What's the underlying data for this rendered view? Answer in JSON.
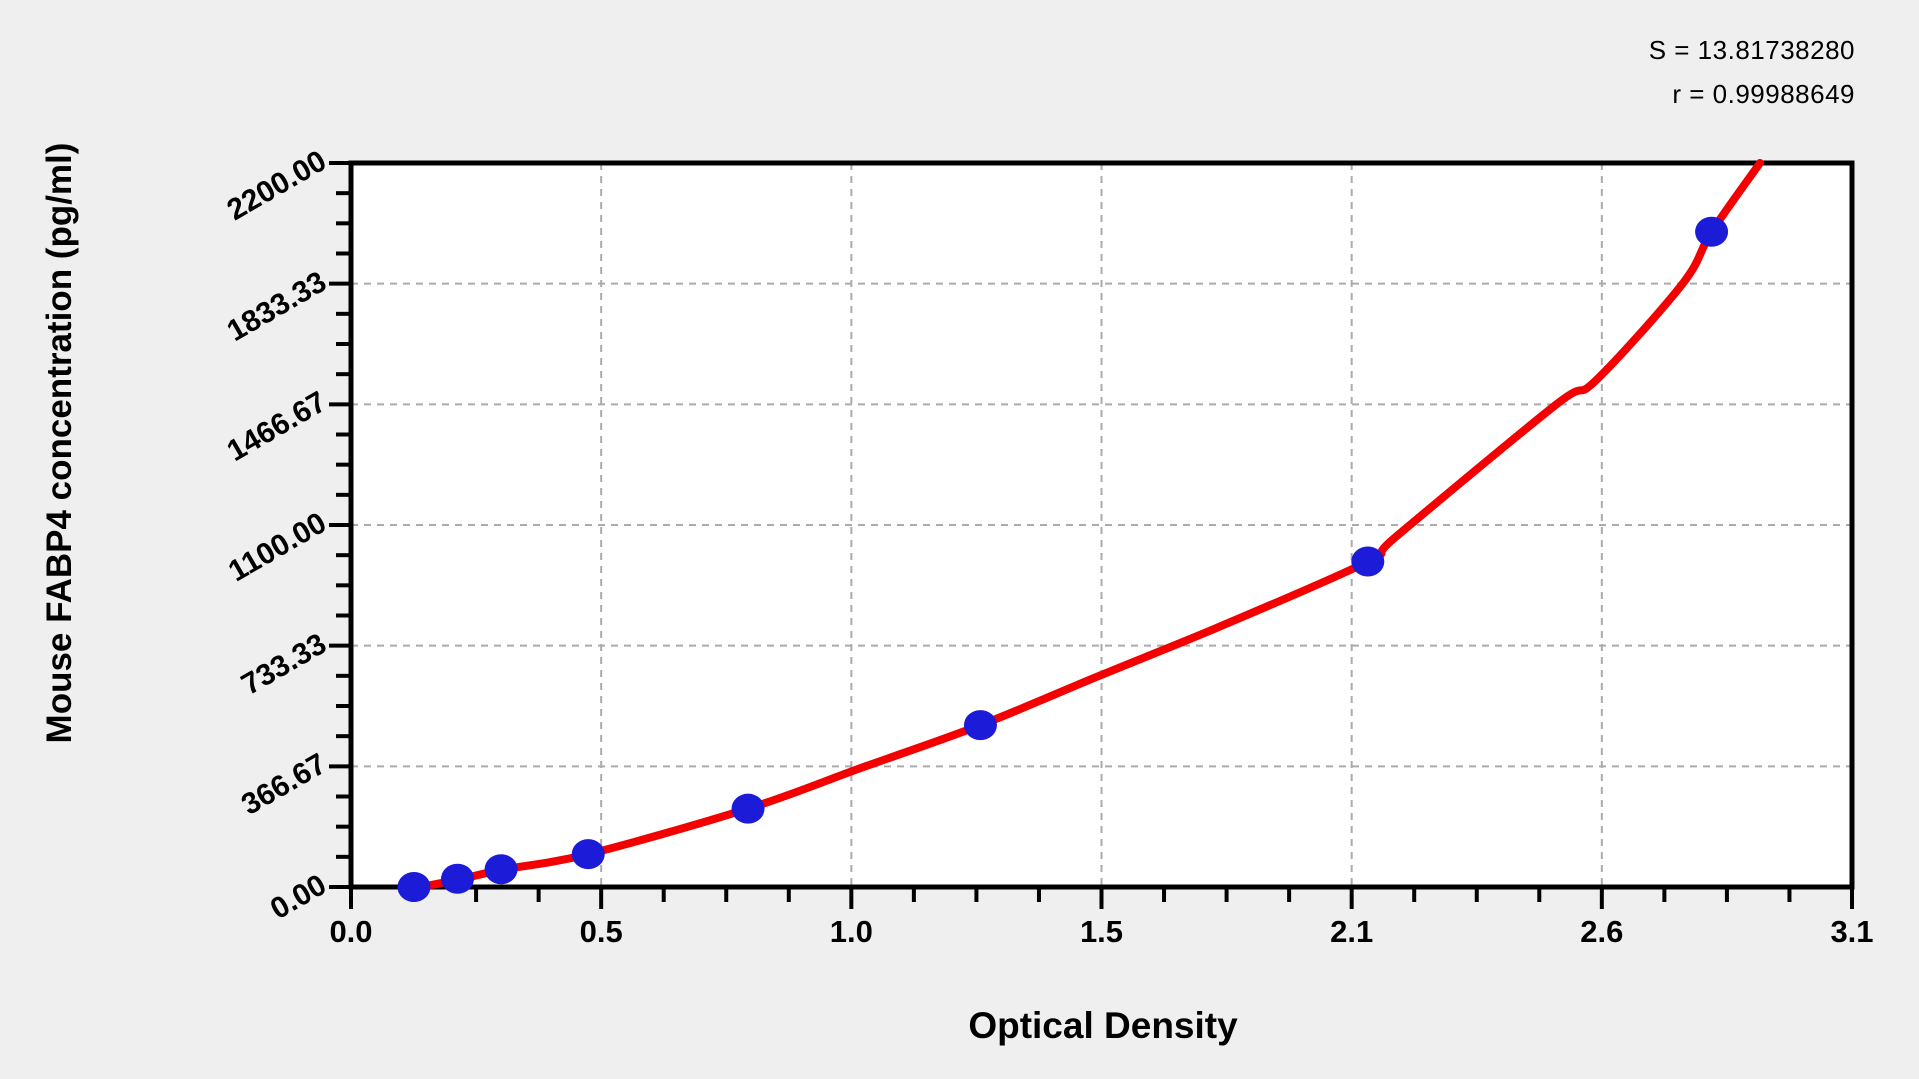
{
  "chart_data": {
    "type": "scatter",
    "title": "",
    "xlabel": "Optical Density",
    "ylabel": "Mouse FABP4 concentration (pg/ml)",
    "xlim": [
      0,
      3.1
    ],
    "ylim": [
      0,
      2200
    ],
    "x_tick_labels": [
      "0.0",
      "0.5",
      "1.0",
      "1.5",
      "2.1",
      "2.6",
      "3.1"
    ],
    "y_tick_labels": [
      "0.00",
      "366.67",
      "733.33",
      "1100.00",
      "1466.67",
      "1833.33",
      "2200.00"
    ],
    "minor_ticks_per_major_interval": 3,
    "grid": {
      "style": "dashed",
      "at": "major ticks",
      "visible": true
    },
    "legend": "none",
    "annotations": {
      "s_line": "S = 13.81738280",
      "r_line": "r = 0.99988649",
      "S": "13.81738280",
      "r": "0.99988649"
    },
    "points": [
      {
        "od": 0.13,
        "conc": 0
      },
      {
        "od": 0.22,
        "conc": 25
      },
      {
        "od": 0.31,
        "conc": 54
      },
      {
        "od": 0.49,
        "conc": 100
      },
      {
        "od": 0.82,
        "conc": 238
      },
      {
        "od": 1.3,
        "conc": 492
      },
      {
        "od": 2.1,
        "conc": 989
      },
      {
        "od": 2.81,
        "conc": 1991
      }
    ],
    "curve_samples": [
      [
        0.115,
        -8
      ],
      [
        0.22,
        22
      ],
      [
        0.31,
        52
      ],
      [
        0.49,
        100
      ],
      [
        0.82,
        238
      ],
      [
        1.05,
        360
      ],
      [
        1.3,
        492
      ],
      [
        1.544,
        641
      ],
      [
        1.8,
        795
      ],
      [
        2.1,
        989
      ],
      [
        2.16,
        1067
      ],
      [
        2.49,
        1467
      ],
      [
        2.57,
        1538
      ],
      [
        2.75,
        1833
      ],
      [
        2.81,
        1991
      ],
      [
        2.91,
        2200
      ]
    ],
    "colors": {
      "curve": "#f40000",
      "points": "#1b1bd8",
      "grid": "#ababab",
      "axis": "#000000",
      "background": "#efefef",
      "plot_background": "#ffffff"
    }
  }
}
